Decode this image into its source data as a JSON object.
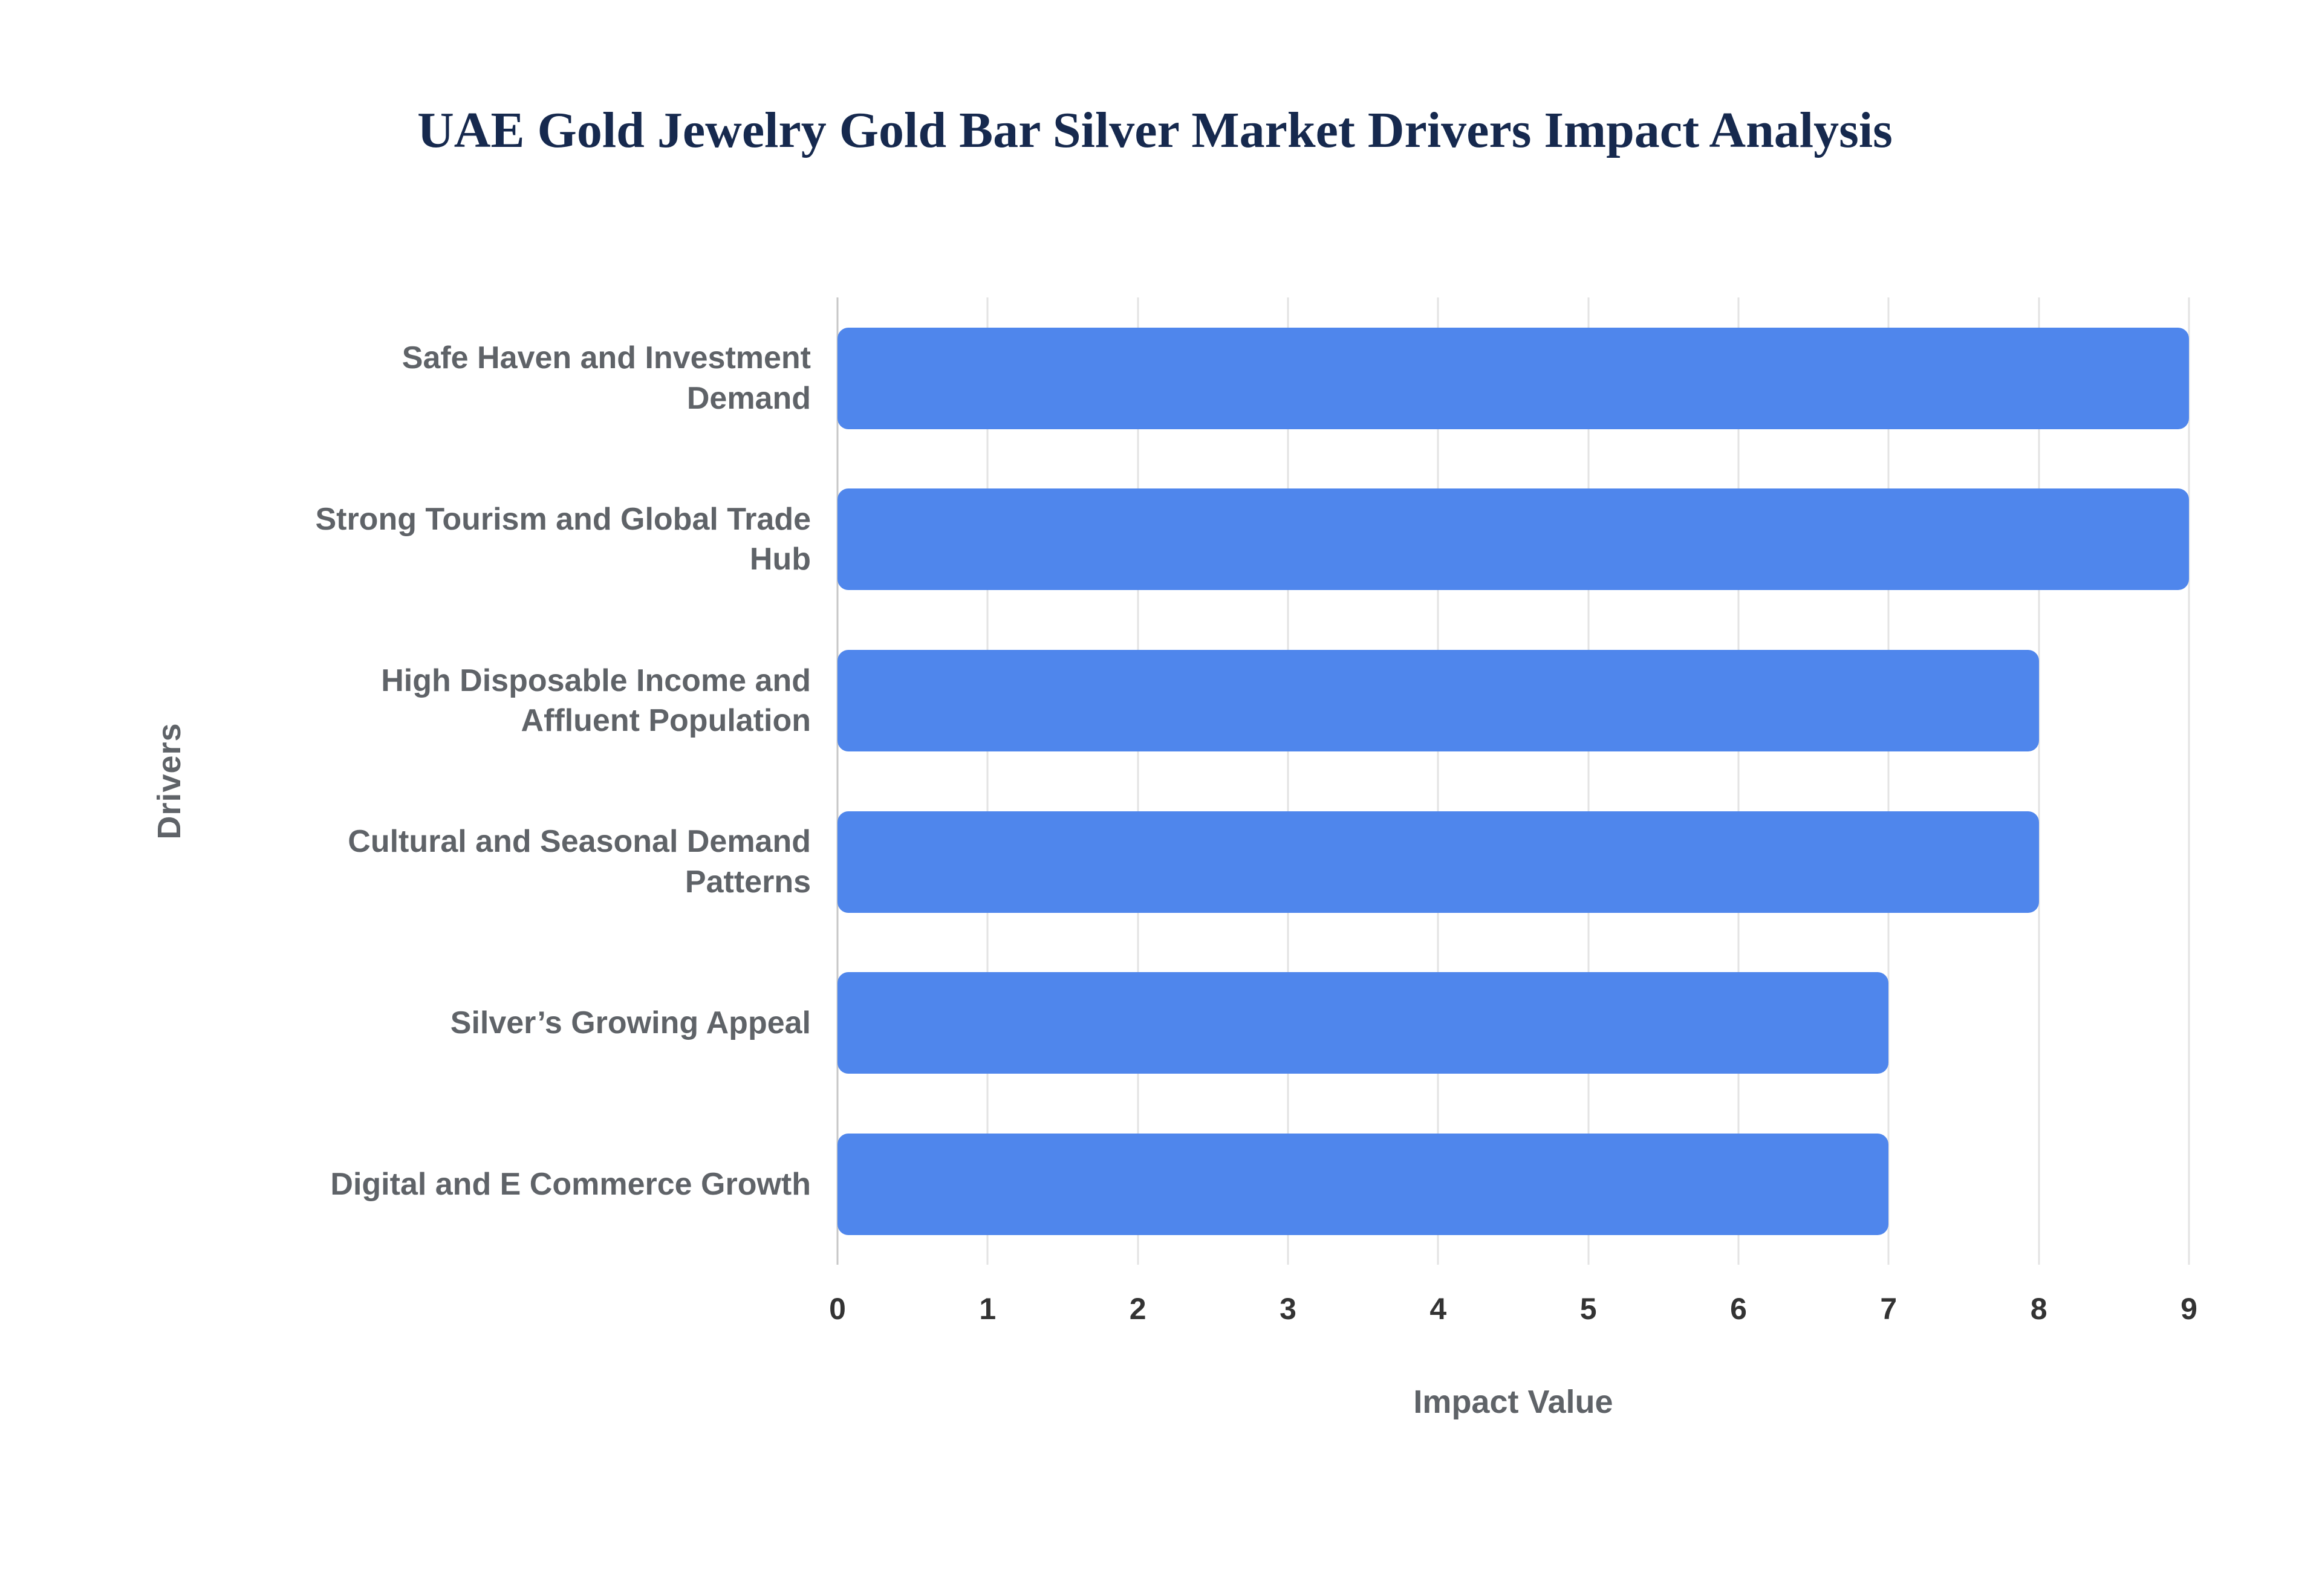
{
  "title": "UAE Gold Jewelry Gold Bar Silver Market Drivers Impact Analysis",
  "chart_data": {
    "type": "bar",
    "orientation": "horizontal",
    "title": "UAE Gold Jewelry Gold Bar Silver Market Drivers Impact Analysis",
    "categories": [
      "Safe Haven and Investment Demand",
      "Strong Tourism and Global Trade Hub",
      "High Disposable Income and Affluent Population",
      "Cultural and Seasonal Demand Patterns",
      "Silver’s Growing Appeal",
      "Digital and E Commerce Growth"
    ],
    "values": [
      9,
      9,
      8,
      8,
      7,
      7
    ],
    "xlabel": "Impact Value",
    "ylabel": "Drivers",
    "xlim": [
      0,
      9
    ],
    "ticks": [
      0,
      1,
      2,
      3,
      4,
      5,
      6,
      7,
      8,
      9
    ],
    "bar_color": "#4f86ec",
    "grid": true,
    "legend": false
  }
}
